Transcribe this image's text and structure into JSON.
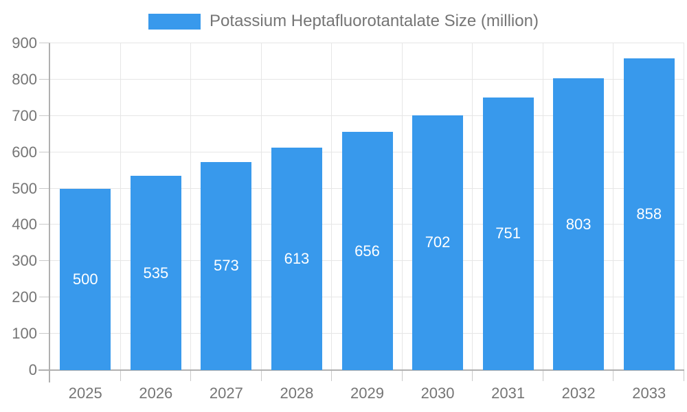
{
  "legend": {
    "label": "Potassium Heptafluorotantalate Size (million)"
  },
  "chart_data": {
    "type": "bar",
    "title": "Potassium Heptafluorotantalate Size (million)",
    "categories": [
      "2025",
      "2026",
      "2027",
      "2028",
      "2029",
      "2030",
      "2031",
      "2032",
      "2033"
    ],
    "series": [
      {
        "name": "Potassium Heptafluorotantalate Size (million)",
        "values": [
          500,
          535,
          573,
          613,
          656,
          702,
          751,
          803,
          858
        ]
      }
    ],
    "value_labels": [
      "500",
      "535",
      "573",
      "613",
      "656",
      "702",
      "751",
      "803",
      "858"
    ],
    "xlabel": "",
    "ylabel": "",
    "ylim": [
      0,
      900
    ],
    "ytick_step": 100,
    "grid": true,
    "legend_position": "top",
    "value_label_position": "center-inside"
  },
  "style": {
    "bar_color": "#3899EC",
    "grid_color": "#e6e6e6",
    "axis_color": "#b0b0b0",
    "tick_color": "#c9c9c9",
    "text_color": "#757575",
    "value_label_color": "#ffffff",
    "background": "#ffffff"
  }
}
